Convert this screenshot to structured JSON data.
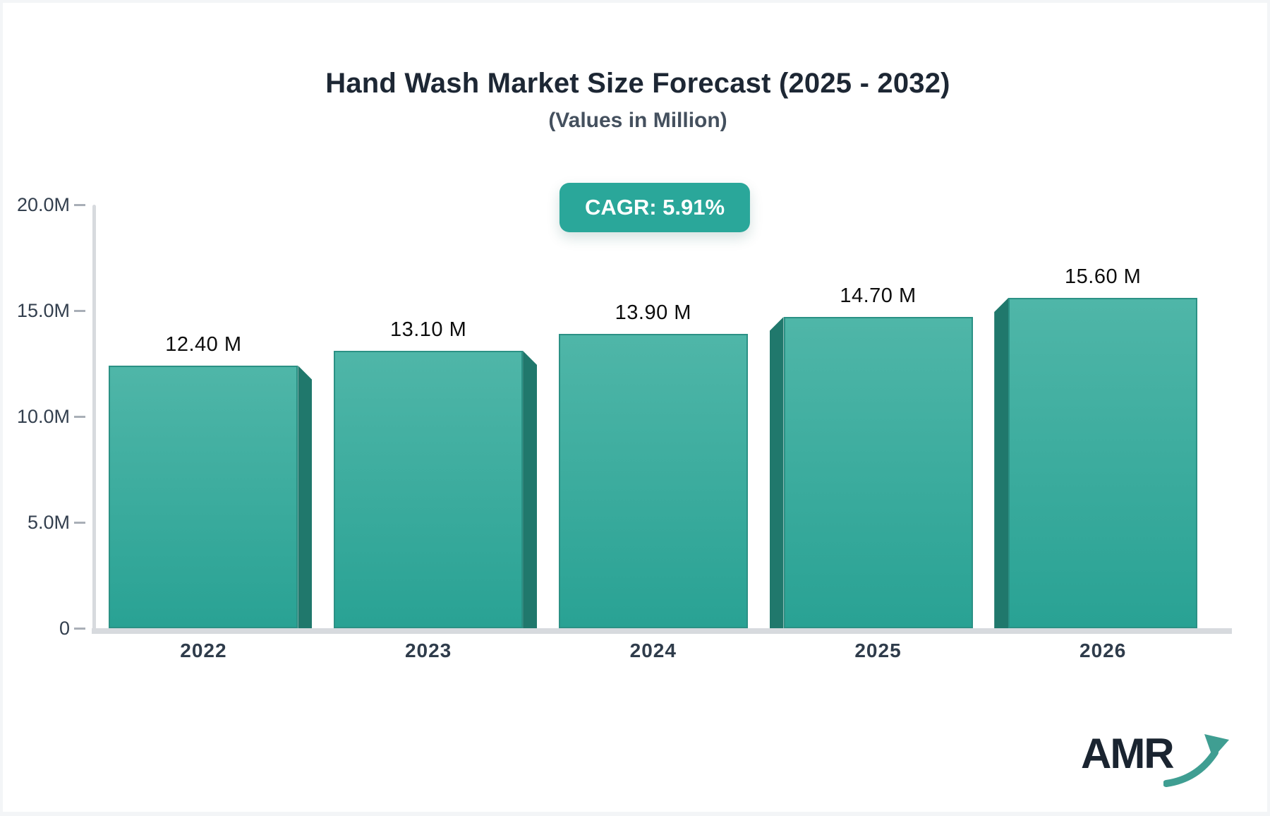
{
  "header": {
    "title": "Hand Wash Market Size Forecast (2025 - 2032)",
    "subtitle": "(Values in Million)"
  },
  "badge": {
    "label": "CAGR: 5.91%",
    "bg": "#2aa79a",
    "text_color": "#ffffff"
  },
  "chart_data": {
    "type": "bar",
    "title": "Hand Wash Market Size Forecast (2025 - 2032)",
    "subtitle": "(Values in Million)",
    "unit": "Million",
    "cagr_percent": "5.91%",
    "categories": [
      "2022",
      "2023",
      "2024",
      "2025",
      "2026"
    ],
    "values": [
      12.4,
      13.1,
      13.9,
      14.7,
      15.6
    ],
    "value_labels": [
      "12.40 M",
      "13.10 M",
      "13.90 M",
      "14.70 M",
      "15.60 M"
    ],
    "xlabel": "",
    "ylabel": "",
    "ylim": [
      0,
      20
    ],
    "yticks": [
      {
        "value": 0,
        "label": "0"
      },
      {
        "value": 5,
        "label": "5.0M"
      },
      {
        "value": 10,
        "label": "10.0M"
      },
      {
        "value": 15,
        "label": "15.0M"
      },
      {
        "value": 20,
        "label": "20.0M"
      }
    ],
    "grid": false,
    "legend": null,
    "colors": {
      "bar_top": "#4fb6a8",
      "bar_bottom": "#29a294",
      "bar_border": "#2b9185",
      "bar_side": "#20786c",
      "axis": "#d7dade",
      "tick": "#a9afb7",
      "axis_label": "#333f4e",
      "category_label": "#2f3c4b",
      "value_label": "#0d0d0d"
    }
  },
  "logo": {
    "text": "AMR",
    "text_color": "#1a2430",
    "arrow_color": "#3f9e92"
  }
}
